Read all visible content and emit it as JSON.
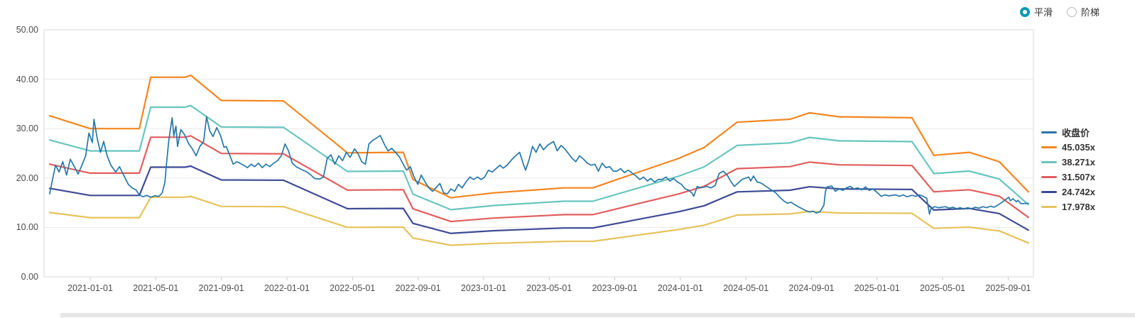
{
  "controls": {
    "smooth_label": "平滑",
    "step_label": "阶梯",
    "selected": "平滑",
    "accent_color": "#0a99b1"
  },
  "legend": {
    "items": [
      {
        "label": "收盘价",
        "color": "#2677a9"
      },
      {
        "label": "45.035x",
        "color": "#f5861f"
      },
      {
        "label": "38.271x",
        "color": "#68c5c0"
      },
      {
        "label": "31.507x",
        "color": "#e25d5d"
      },
      {
        "label": "24.742x",
        "color": "#3e4b96"
      },
      {
        "label": "17.978x",
        "color": "#e6c35c"
      }
    ]
  },
  "colors": {
    "grid": "#e9e9e9",
    "plot_border": "#d9d9d9",
    "tick": "#c9c9c9",
    "axis_text": "#4d4d4d",
    "scrollbar": "#e6e6e6"
  },
  "chart_data": {
    "type": "line",
    "title": "",
    "xlabel": "",
    "ylabel": "",
    "legend_position": "right",
    "grid": "horizontal-only",
    "y_axis": {
      "min": 0,
      "max": 50,
      "tick_values": [
        0,
        10,
        20,
        30,
        40,
        50
      ],
      "tick_labels": [
        "0.00",
        "10.00",
        "20.00",
        "30.00",
        "40.00",
        "50.00"
      ]
    },
    "x_axis": {
      "tick_labels": [
        "2021-01-01",
        "2021-05-01",
        "2021-09-01",
        "2022-01-01",
        "2022-05-01",
        "2022-09-01",
        "2023-01-01",
        "2023-05-01",
        "2023-09-01",
        "2024-01-01",
        "2024-05-01",
        "2024-09-01",
        "2025-01-01",
        "2025-05-01",
        "2025-09-01"
      ]
    },
    "close_series": {
      "name": "收盘价",
      "color": "#2677a9",
      "points": [
        [
          "2020-10-17",
          16.8
        ],
        [
          "2020-10-22",
          19.5
        ],
        [
          "2020-10-28",
          22.6
        ],
        [
          "2020-11-04",
          21.2
        ],
        [
          "2020-11-11",
          23.3
        ],
        [
          "2020-11-18",
          20.6
        ],
        [
          "2020-11-25",
          23.8
        ],
        [
          "2020-12-02",
          22.3
        ],
        [
          "2020-12-09",
          20.8
        ],
        [
          "2020-12-16",
          22.6
        ],
        [
          "2020-12-23",
          24.5
        ],
        [
          "2020-12-29",
          29.1
        ],
        [
          "2021-01-05",
          27.2
        ],
        [
          "2021-01-08",
          31.9
        ],
        [
          "2021-01-14",
          28.0
        ],
        [
          "2021-01-20",
          25.2
        ],
        [
          "2021-01-26",
          27.4
        ],
        [
          "2021-02-02",
          24.5
        ],
        [
          "2021-02-09",
          22.6
        ],
        [
          "2021-02-18",
          21.2
        ],
        [
          "2021-02-25",
          22.3
        ],
        [
          "2021-03-04",
          20.2
        ],
        [
          "2021-03-11",
          18.7
        ],
        [
          "2021-03-18",
          18.0
        ],
        [
          "2021-03-25",
          17.6
        ],
        [
          "2021-04-01",
          16.6
        ],
        [
          "2021-04-08",
          16.2
        ],
        [
          "2021-04-15",
          16.5
        ],
        [
          "2021-04-22",
          16.1
        ],
        [
          "2021-04-29",
          16.4
        ],
        [
          "2021-05-07",
          16.3
        ],
        [
          "2021-05-13",
          17.0
        ],
        [
          "2021-05-18",
          19.2
        ],
        [
          "2021-05-21",
          23.0
        ],
        [
          "2021-05-25",
          27.4
        ],
        [
          "2021-05-28",
          29.8
        ],
        [
          "2021-06-01",
          32.2
        ],
        [
          "2021-06-04",
          28.5
        ],
        [
          "2021-06-08",
          30.5
        ],
        [
          "2021-06-11",
          26.4
        ],
        [
          "2021-06-17",
          29.8
        ],
        [
          "2021-06-24",
          28.8
        ],
        [
          "2021-07-01",
          27.0
        ],
        [
          "2021-07-08",
          25.9
        ],
        [
          "2021-07-15",
          24.5
        ],
        [
          "2021-07-22",
          26.4
        ],
        [
          "2021-07-29",
          27.4
        ],
        [
          "2021-08-04",
          32.4
        ],
        [
          "2021-08-10",
          29.5
        ],
        [
          "2021-08-16",
          28.4
        ],
        [
          "2021-08-23",
          30.2
        ],
        [
          "2021-08-30",
          28.6
        ],
        [
          "2021-09-06",
          26.2
        ],
        [
          "2021-09-10",
          26.4
        ],
        [
          "2021-09-16",
          24.8
        ],
        [
          "2021-09-23",
          22.8
        ],
        [
          "2021-09-30",
          23.3
        ],
        [
          "2021-10-12",
          22.6
        ],
        [
          "2021-10-19",
          22.1
        ],
        [
          "2021-10-26",
          22.8
        ],
        [
          "2021-11-02",
          22.3
        ],
        [
          "2021-11-09",
          23.0
        ],
        [
          "2021-11-16",
          22.1
        ],
        [
          "2021-11-23",
          22.8
        ],
        [
          "2021-11-30",
          22.3
        ],
        [
          "2021-12-07",
          23.0
        ],
        [
          "2021-12-14",
          23.5
        ],
        [
          "2021-12-21",
          24.5
        ],
        [
          "2021-12-28",
          26.9
        ],
        [
          "2022-01-04",
          25.5
        ],
        [
          "2022-01-11",
          23.0
        ],
        [
          "2022-01-18",
          22.3
        ],
        [
          "2022-01-25",
          21.9
        ],
        [
          "2022-02-08",
          21.2
        ],
        [
          "2022-02-15",
          20.6
        ],
        [
          "2022-02-22",
          19.9
        ],
        [
          "2022-03-01",
          19.8
        ],
        [
          "2022-03-08",
          20.2
        ],
        [
          "2022-03-15",
          24.0
        ],
        [
          "2022-03-22",
          24.7
        ],
        [
          "2022-03-29",
          22.8
        ],
        [
          "2022-04-06",
          24.5
        ],
        [
          "2022-04-13",
          23.5
        ],
        [
          "2022-04-20",
          25.2
        ],
        [
          "2022-04-27",
          24.2
        ],
        [
          "2022-05-05",
          25.9
        ],
        [
          "2022-05-11",
          25.0
        ],
        [
          "2022-05-18",
          23.3
        ],
        [
          "2022-05-25",
          22.8
        ],
        [
          "2022-06-01",
          26.9
        ],
        [
          "2022-06-08",
          27.6
        ],
        [
          "2022-06-15",
          28.1
        ],
        [
          "2022-06-22",
          28.6
        ],
        [
          "2022-06-29",
          27.0
        ],
        [
          "2022-07-06",
          25.5
        ],
        [
          "2022-07-13",
          26.0
        ],
        [
          "2022-07-20",
          25.2
        ],
        [
          "2022-07-27",
          24.3
        ],
        [
          "2022-08-03",
          23.0
        ],
        [
          "2022-08-10",
          21.6
        ],
        [
          "2022-08-17",
          22.3
        ],
        [
          "2022-08-24",
          20.2
        ],
        [
          "2022-08-31",
          18.7
        ],
        [
          "2022-09-07",
          20.6
        ],
        [
          "2022-09-14",
          19.2
        ],
        [
          "2022-09-21",
          18.0
        ],
        [
          "2022-09-28",
          17.3
        ],
        [
          "2022-10-11",
          18.9
        ],
        [
          "2022-10-18",
          17.0
        ],
        [
          "2022-10-25",
          16.8
        ],
        [
          "2022-11-01",
          17.8
        ],
        [
          "2022-11-08",
          17.3
        ],
        [
          "2022-11-15",
          18.7
        ],
        [
          "2022-11-22",
          18.0
        ],
        [
          "2022-11-29",
          19.2
        ],
        [
          "2022-12-06",
          20.2
        ],
        [
          "2022-12-13",
          19.7
        ],
        [
          "2022-12-20",
          20.2
        ],
        [
          "2022-12-27",
          19.7
        ],
        [
          "2023-01-03",
          20.2
        ],
        [
          "2023-01-10",
          21.6
        ],
        [
          "2023-01-17",
          21.2
        ],
        [
          "2023-01-31",
          22.6
        ],
        [
          "2023-02-07",
          22.0
        ],
        [
          "2023-02-14",
          22.6
        ],
        [
          "2023-02-21",
          23.5
        ],
        [
          "2023-02-28",
          24.3
        ],
        [
          "2023-03-07",
          25.2
        ],
        [
          "2023-03-14",
          22.8
        ],
        [
          "2023-03-18",
          21.6
        ],
        [
          "2023-03-24",
          23.5
        ],
        [
          "2023-03-31",
          26.4
        ],
        [
          "2023-04-07",
          25.2
        ],
        [
          "2023-04-14",
          26.9
        ],
        [
          "2023-04-21",
          25.7
        ],
        [
          "2023-04-28",
          26.6
        ],
        [
          "2023-05-09",
          27.4
        ],
        [
          "2023-05-16",
          25.5
        ],
        [
          "2023-05-23",
          26.6
        ],
        [
          "2023-05-30",
          25.9
        ],
        [
          "2023-06-06",
          25.0
        ],
        [
          "2023-06-13",
          24.0
        ],
        [
          "2023-06-20",
          23.3
        ],
        [
          "2023-06-27",
          24.5
        ],
        [
          "2023-07-04",
          23.8
        ],
        [
          "2023-07-11",
          23.0
        ],
        [
          "2023-07-18",
          22.6
        ],
        [
          "2023-07-25",
          22.8
        ],
        [
          "2023-08-01",
          21.4
        ],
        [
          "2023-08-08",
          23.0
        ],
        [
          "2023-08-15",
          22.1
        ],
        [
          "2023-08-22",
          22.3
        ],
        [
          "2023-08-29",
          21.4
        ],
        [
          "2023-09-05",
          21.4
        ],
        [
          "2023-09-12",
          21.9
        ],
        [
          "2023-09-19",
          21.1
        ],
        [
          "2023-09-26",
          21.6
        ],
        [
          "2023-10-10",
          20.4
        ],
        [
          "2023-10-17",
          19.7
        ],
        [
          "2023-10-24",
          20.2
        ],
        [
          "2023-10-31",
          19.4
        ],
        [
          "2023-11-07",
          19.9
        ],
        [
          "2023-11-14",
          19.2
        ],
        [
          "2023-11-21",
          19.7
        ],
        [
          "2023-11-28",
          19.7
        ],
        [
          "2023-12-05",
          20.2
        ],
        [
          "2023-12-12",
          19.4
        ],
        [
          "2023-12-19",
          19.9
        ],
        [
          "2023-12-26",
          19.2
        ],
        [
          "2024-01-03",
          18.7
        ],
        [
          "2024-01-10",
          17.8
        ],
        [
          "2024-01-17",
          17.5
        ],
        [
          "2024-01-23",
          16.9
        ],
        [
          "2024-01-26",
          16.3
        ],
        [
          "2024-02-02",
          18.3
        ],
        [
          "2024-02-08",
          18.0
        ],
        [
          "2024-02-20",
          18.3
        ],
        [
          "2024-02-27",
          18.0
        ],
        [
          "2024-03-05",
          18.5
        ],
        [
          "2024-03-12",
          20.9
        ],
        [
          "2024-03-20",
          21.4
        ],
        [
          "2024-03-27",
          20.6
        ],
        [
          "2024-04-03",
          19.4
        ],
        [
          "2024-04-10",
          18.3
        ],
        [
          "2024-04-17",
          19.0
        ],
        [
          "2024-04-24",
          19.7
        ],
        [
          "2024-05-06",
          20.2
        ],
        [
          "2024-05-10",
          19.4
        ],
        [
          "2024-05-15",
          20.4
        ],
        [
          "2024-05-22",
          19.2
        ],
        [
          "2024-05-29",
          19.0
        ],
        [
          "2024-06-05",
          18.5
        ],
        [
          "2024-06-12",
          18.0
        ],
        [
          "2024-06-19",
          17.5
        ],
        [
          "2024-06-26",
          17.0
        ],
        [
          "2024-07-03",
          16.1
        ],
        [
          "2024-07-10",
          15.4
        ],
        [
          "2024-07-17",
          14.9
        ],
        [
          "2024-07-24",
          15.1
        ],
        [
          "2024-07-31",
          14.6
        ],
        [
          "2024-08-07",
          14.2
        ],
        [
          "2024-08-14",
          13.8
        ],
        [
          "2024-08-21",
          13.4
        ],
        [
          "2024-08-28",
          13.1
        ],
        [
          "2024-09-04",
          13.3
        ],
        [
          "2024-09-10",
          12.9
        ],
        [
          "2024-09-17",
          13.2
        ],
        [
          "2024-09-24",
          14.5
        ],
        [
          "2024-09-27",
          17.3
        ],
        [
          "2024-09-30",
          18.2
        ],
        [
          "2024-10-08",
          18.4
        ],
        [
          "2024-10-15",
          17.3
        ],
        [
          "2024-10-22",
          17.8
        ],
        [
          "2024-10-29",
          17.5
        ],
        [
          "2024-11-05",
          18.0
        ],
        [
          "2024-11-12",
          18.3
        ],
        [
          "2024-11-19",
          17.8
        ],
        [
          "2024-11-26",
          18.0
        ],
        [
          "2024-12-03",
          17.6
        ],
        [
          "2024-12-10",
          18.2
        ],
        [
          "2024-12-17",
          17.5
        ],
        [
          "2024-12-24",
          17.8
        ],
        [
          "2025-01-02",
          17.0
        ],
        [
          "2025-01-09",
          16.3
        ],
        [
          "2025-01-16",
          16.6
        ],
        [
          "2025-01-23",
          16.4
        ],
        [
          "2025-02-05",
          16.6
        ],
        [
          "2025-02-12",
          16.3
        ],
        [
          "2025-02-19",
          16.6
        ],
        [
          "2025-02-26",
          16.2
        ],
        [
          "2025-03-05",
          16.5
        ],
        [
          "2025-03-12",
          16.3
        ],
        [
          "2025-03-19",
          16.6
        ],
        [
          "2025-03-26",
          16.3
        ],
        [
          "2025-04-02",
          15.9
        ],
        [
          "2025-04-07",
          12.7
        ],
        [
          "2025-04-10",
          13.9
        ],
        [
          "2025-04-17",
          14.2
        ],
        [
          "2025-04-24",
          14.0
        ],
        [
          "2025-05-06",
          14.2
        ],
        [
          "2025-05-13",
          13.9
        ],
        [
          "2025-05-20",
          14.1
        ],
        [
          "2025-05-27",
          13.8
        ],
        [
          "2025-06-03",
          14.0
        ],
        [
          "2025-06-10",
          13.7
        ],
        [
          "2025-06-17",
          14.0
        ],
        [
          "2025-06-24",
          13.8
        ],
        [
          "2025-07-01",
          14.1
        ],
        [
          "2025-07-08",
          13.9
        ],
        [
          "2025-07-15",
          14.2
        ],
        [
          "2025-07-22",
          14.0
        ],
        [
          "2025-07-29",
          14.3
        ],
        [
          "2025-08-05",
          14.1
        ],
        [
          "2025-08-12",
          14.5
        ],
        [
          "2025-08-19",
          15.0
        ],
        [
          "2025-08-26",
          15.6
        ],
        [
          "2025-09-02",
          16.1
        ],
        [
          "2025-09-05",
          15.4
        ],
        [
          "2025-09-10",
          15.8
        ],
        [
          "2025-09-16",
          15.2
        ],
        [
          "2025-09-19",
          15.5
        ],
        [
          "2025-09-23",
          15.0
        ],
        [
          "2025-09-26",
          14.8
        ],
        [
          "2025-10-08",
          14.9
        ]
      ]
    },
    "valuation_bands": {
      "note": "each band = driver_points value scaled by multiple/45.035",
      "base_multiple": 45.035,
      "bands": [
        {
          "multiple": 45.035,
          "label": "45.035x",
          "color": "#f5861f"
        },
        {
          "multiple": 38.271,
          "label": "38.271x",
          "color": "#68c5c0"
        },
        {
          "multiple": 31.507,
          "label": "31.507x",
          "color": "#e25d5d"
        },
        {
          "multiple": 24.742,
          "label": "24.742x",
          "color": "#3e4b96"
        },
        {
          "multiple": 17.978,
          "label": "17.978x",
          "color": "#e6c35c"
        }
      ],
      "driver_points": [
        [
          "2020-10-17",
          32.6
        ],
        [
          "2021-01-01",
          30.0
        ],
        [
          "2021-04-01",
          30.0
        ],
        [
          "2021-04-22",
          40.4
        ],
        [
          "2021-06-25",
          40.4
        ],
        [
          "2021-07-05",
          40.8
        ],
        [
          "2021-09-01",
          35.7
        ],
        [
          "2021-12-25",
          35.6
        ],
        [
          "2022-04-22",
          25.1
        ],
        [
          "2022-08-04",
          25.2
        ],
        [
          "2022-08-22",
          19.7
        ],
        [
          "2022-11-01",
          16.0
        ],
        [
          "2023-01-20",
          17.0
        ],
        [
          "2023-04-07",
          17.6
        ],
        [
          "2023-05-28",
          18.0
        ],
        [
          "2023-07-21",
          18.0
        ],
        [
          "2023-10-07",
          20.9
        ],
        [
          "2023-12-29",
          24.0
        ],
        [
          "2024-02-15",
          26.2
        ],
        [
          "2024-04-15",
          31.3
        ],
        [
          "2024-07-22",
          31.9
        ],
        [
          "2024-08-28",
          33.2
        ],
        [
          "2024-10-22",
          32.4
        ],
        [
          "2025-03-05",
          32.2
        ],
        [
          "2025-04-15",
          24.6
        ],
        [
          "2025-06-20",
          25.2
        ],
        [
          "2025-08-15",
          23.3
        ],
        [
          "2025-10-08",
          17.2
        ]
      ]
    }
  }
}
